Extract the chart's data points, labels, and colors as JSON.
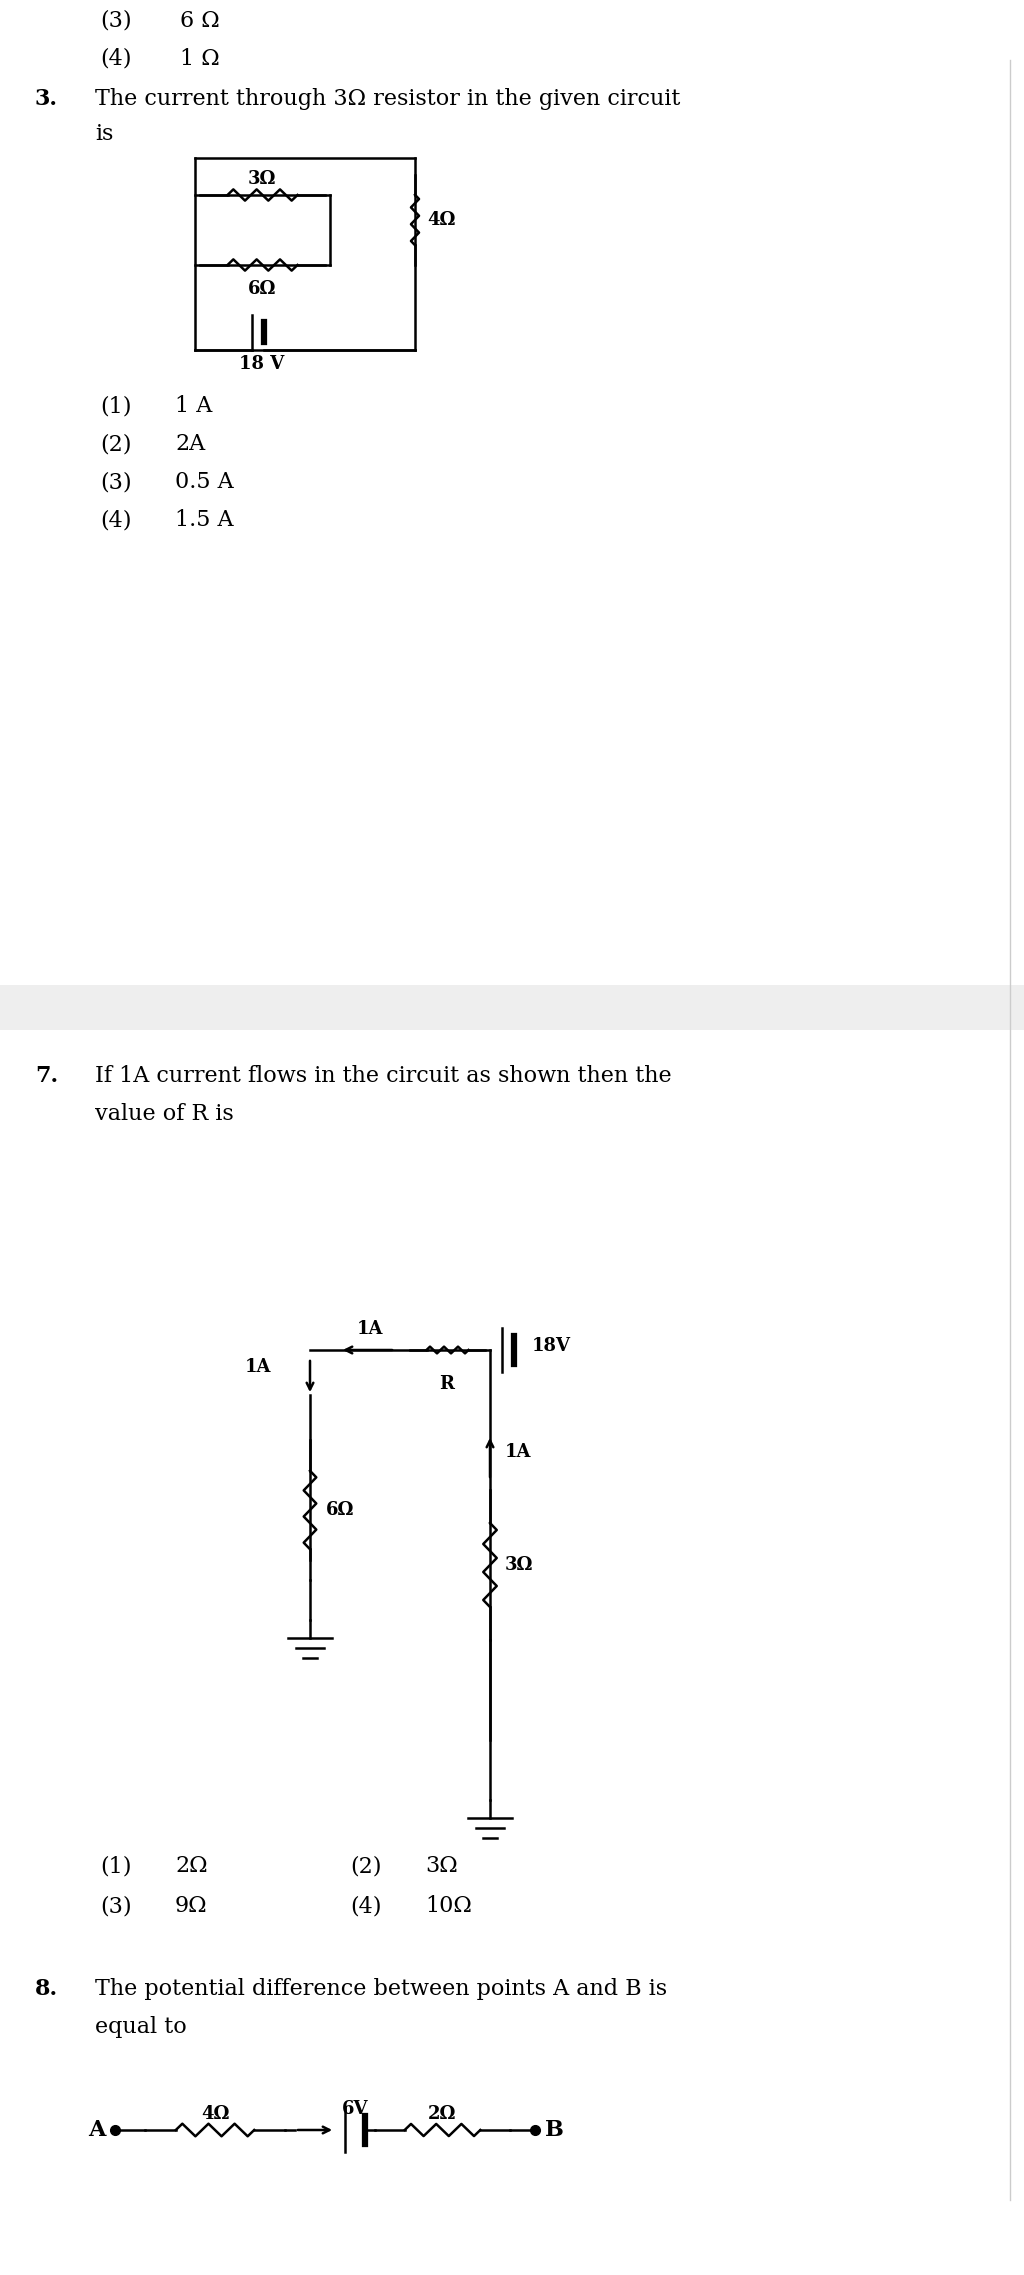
{
  "bg_color": "#ffffff",
  "gray_bar_color": "#eeeeee",
  "text_color": "#000000",
  "prev_opt3": "(3)",
  "prev_val3": "6 Ω",
  "prev_opt4": "(4)",
  "prev_val4": "1 Ω",
  "q3_number": "3.",
  "q3_text_line1": "The current through 3Ω resistor in the given circuit",
  "q3_text_line2": "is",
  "q3_opt1": "(1)",
  "q3_val1": "1 A",
  "q3_opt2": "(2)",
  "q3_val2": "2A",
  "q3_opt3": "(3)",
  "q3_val3": "0.5 A",
  "q3_opt4": "(4)",
  "q3_val4": "1.5 A",
  "q7_number": "7.",
  "q7_text_line1": "If 1A current flows in the circuit as shown then the",
  "q7_text_line2": "value of R is",
  "q7_opt1": "(1)",
  "q7_val1": "2Ω",
  "q7_opt2": "(2)",
  "q7_val2": "3Ω",
  "q7_opt3": "(3)",
  "q7_val3": "9Ω",
  "q7_opt4": "(4)",
  "q7_val4": "10Ω",
  "q8_number": "8.",
  "q8_text_line1": "The potential difference between points A and B is",
  "q8_text_line2": "equal to"
}
